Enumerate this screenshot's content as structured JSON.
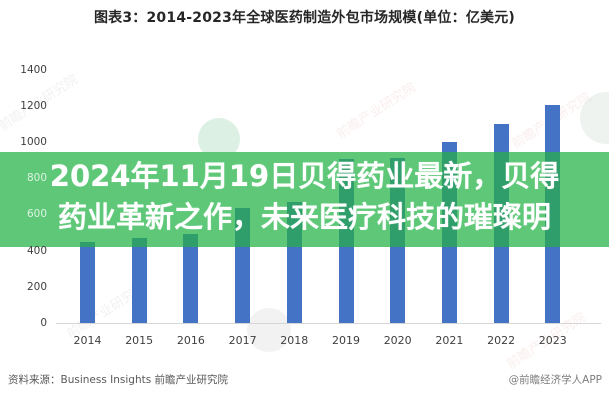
{
  "title": "图表3：2014-2023年全球医药制造外包市场规模(单位：亿美元)",
  "overlay": {
    "line1": "2024年11月19日贝得药业最新，贝得",
    "line2": "药业革新之作，未来医疗科技的璀璨明"
  },
  "footer": {
    "source": "资料来源：Business Insights 前瞻产业研究院",
    "credit": "@前瞻经济学人APP"
  },
  "watermark": {
    "text": "前瞻产业研究院"
  },
  "colors": {
    "bar": "#4472c4",
    "banner": "#5ec878",
    "bar_under_banner": "#2f9e6b",
    "axis_line": "#d6d6d6",
    "tick_text": "#3f3f3f"
  },
  "chart_data": {
    "type": "bar",
    "categories": [
      "2014",
      "2015",
      "2016",
      "2017",
      "2018",
      "2019",
      "2020",
      "2021",
      "2022",
      "2023"
    ],
    "values": [
      445,
      470,
      490,
      635,
      670,
      905,
      910,
      1000,
      1100,
      1205
    ],
    "title": "图表3：2014-2023年全球医药制造外包市场规模(单位：亿美元)",
    "xlabel": "",
    "ylabel": "亿美元",
    "ylim": [
      0,
      1400
    ],
    "yticks": [
      0,
      200,
      400,
      600,
      800,
      1000,
      1200,
      1400
    ],
    "grid": false,
    "legend": false
  }
}
